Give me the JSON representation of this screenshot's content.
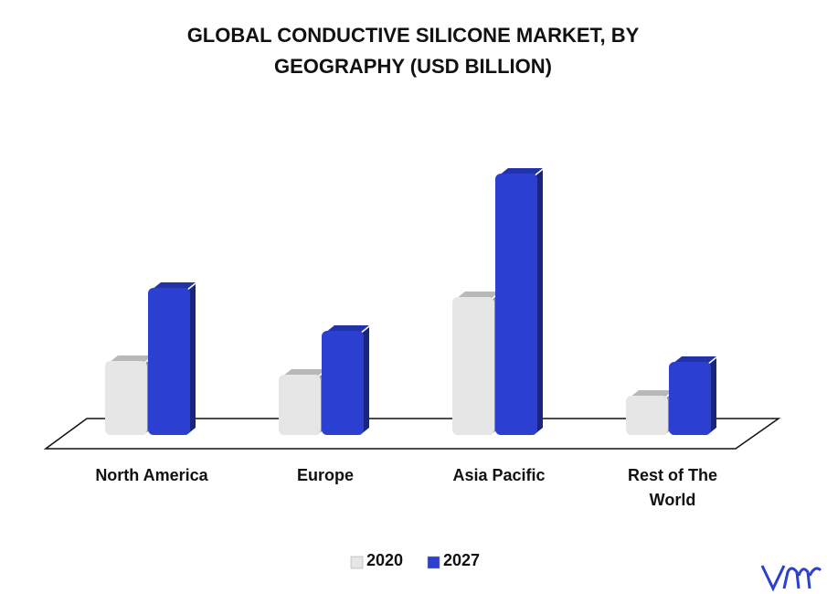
{
  "chart_data": {
    "type": "bar",
    "title": "GLOBAL CONDUCTIVE SILICONE MARKET, BY GEOGRAPHY (USD BILLION)",
    "categories": [
      "North America",
      "Europe",
      "Asia Pacific",
      "Rest of The World"
    ],
    "series": [
      {
        "name": "2020",
        "color": "#e6e6e6",
        "values": [
          81,
          66,
          151,
          43
        ]
      },
      {
        "name": "2027",
        "color": "#2b3fd1",
        "values": [
          161,
          114,
          286,
          80
        ]
      }
    ]
  }
}
